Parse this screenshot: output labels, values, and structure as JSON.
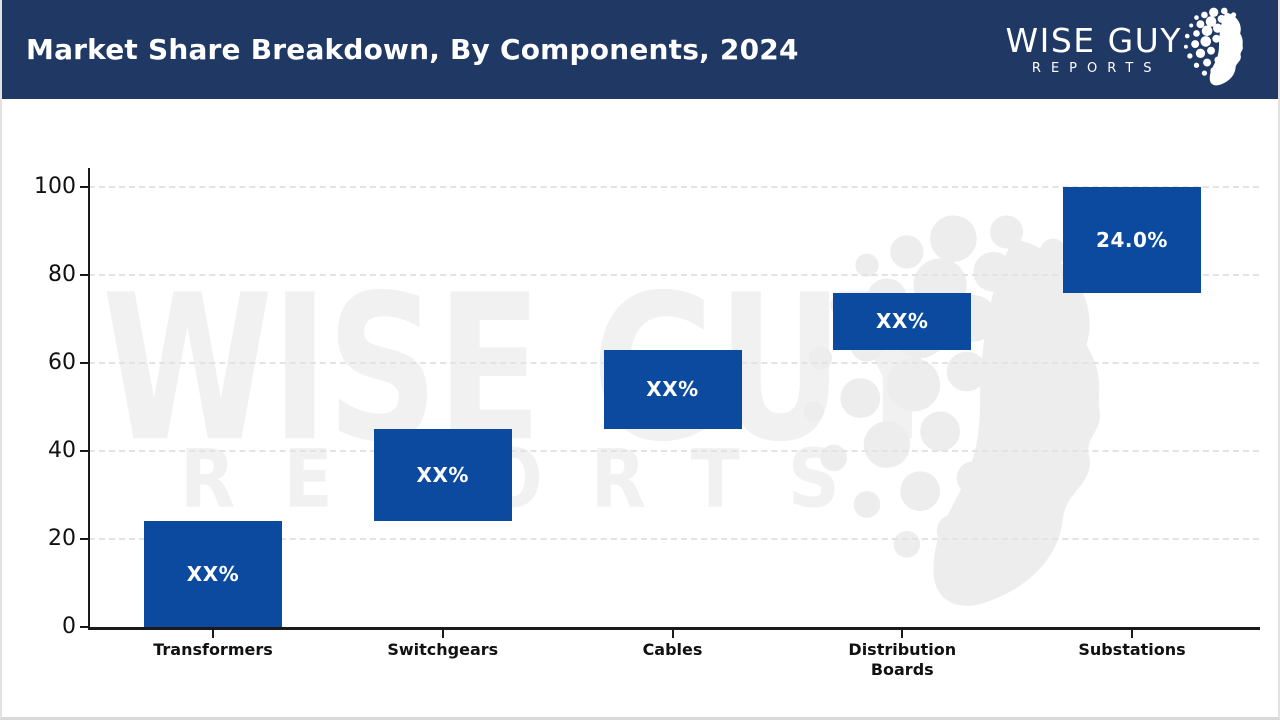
{
  "header": {
    "title": "Market Share Breakdown, By Components, 2024",
    "logo": {
      "line1": "WISE GUY",
      "line2": "REPORTS"
    }
  },
  "watermark": {
    "line1": "WISE GUY",
    "line2": "REPORTS"
  },
  "chart_data": {
    "type": "bar",
    "subtype": "waterfall",
    "title": "Market Share Breakdown, By Components, 2024",
    "categories": [
      "Transformers",
      "Switchgears",
      "Cables",
      "Distribution Boards",
      "Substations"
    ],
    "segments": [
      {
        "category": "Transformers",
        "start": 0,
        "end": 24,
        "label": "XX%"
      },
      {
        "category": "Switchgears",
        "start": 24,
        "end": 45,
        "label": "XX%"
      },
      {
        "category": "Cables",
        "start": 45,
        "end": 63,
        "label": "XX%"
      },
      {
        "category": "Distribution Boards",
        "start": 63,
        "end": 76,
        "label": "XX%"
      },
      {
        "category": "Substations",
        "start": 76,
        "end": 100,
        "label": "24.0%"
      }
    ],
    "values": [
      24,
      21,
      18,
      13,
      24
    ],
    "xlabel": "",
    "ylabel": "",
    "ylim": [
      0,
      105
    ],
    "yticks": [
      0,
      20,
      40,
      60,
      80,
      100
    ],
    "grid": "horizontal-dashed",
    "legend": "none"
  },
  "colors": {
    "header_bg": "#1f3864",
    "bar": "#0b4a9e",
    "grid": "#e3e3e3",
    "axis": "#1a1a1a",
    "watermark": "#f1f1f1",
    "title_text": "#ffffff",
    "bar_label_text": "#ffffff",
    "border": "#d9d9d9"
  }
}
